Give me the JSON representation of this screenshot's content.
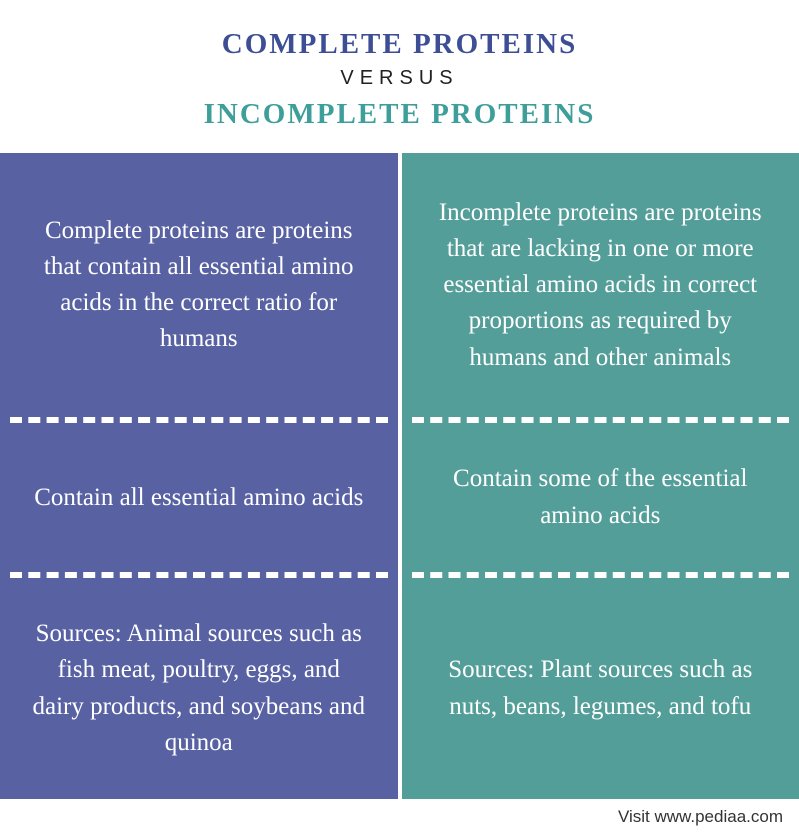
{
  "header": {
    "title_top": "COMPLETE PROTEINS",
    "versus": "VERSUS",
    "title_bottom": "INCOMPLETE PROTEINS"
  },
  "colors": {
    "left_title": "#3d4e95",
    "right_title": "#3e9f9a",
    "left_bg": "#5861a2",
    "right_bg": "#549e9a",
    "text": "#ffffff",
    "footer": "#333333"
  },
  "left": {
    "definition": "Complete proteins are proteins that contain all essential amino acids in the correct ratio for humans",
    "contains": "Contain all essential amino acids",
    "sources": "Sources: Animal sources such as fish meat, poultry, eggs, and dairy products, and soybeans and quinoa"
  },
  "right": {
    "definition": "Incomplete proteins are proteins that are lacking in one or more essential amino acids in correct proportions as required by humans and other animals",
    "contains": "Contain some of the essential amino acids",
    "sources": "Sources: Plant sources such as nuts, beans, legumes, and tofu"
  },
  "footer": {
    "text": "Visit www.pediaa.com"
  }
}
